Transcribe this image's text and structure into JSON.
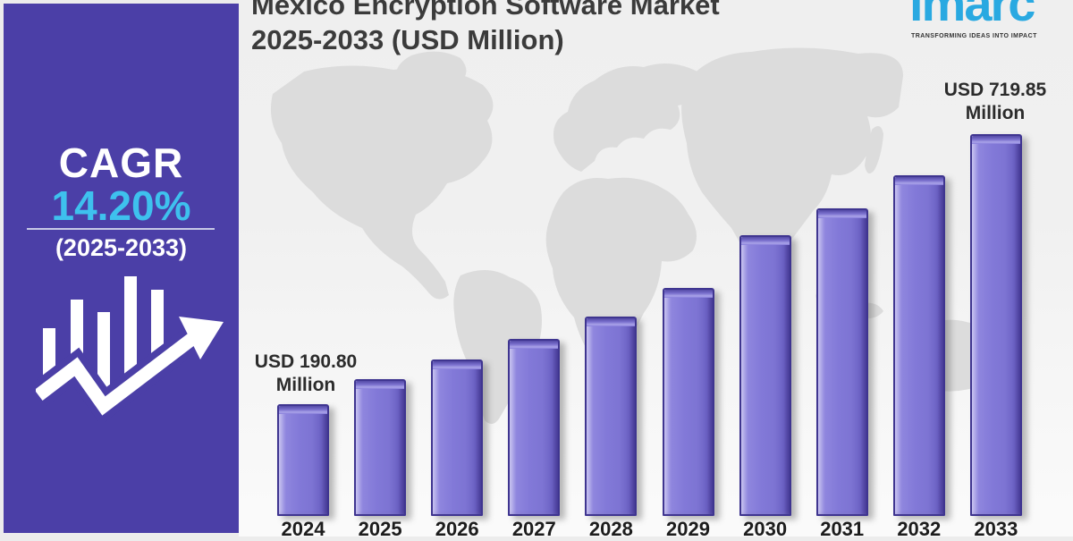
{
  "sidebar": {
    "cagr_label": "CAGR",
    "cagr_value": "14.20%",
    "cagr_period": "(2025-2033)",
    "icon": "bar-chart-growth-arrow",
    "colors": {
      "background": "#4B3FA7",
      "value_text": "#3EC1EE",
      "text": "#FFFFFF"
    }
  },
  "header": {
    "title_line1": "Mexico Encryption Software Market",
    "title_line2": "2025-2033 (USD Million)"
  },
  "logo": {
    "brand": "imarc",
    "tagline": "TRANSFORMING IDEAS INTO IMPACT",
    "brand_color": "#29A9E1"
  },
  "chart_data": {
    "type": "bar",
    "title": "Mexico Encryption Software Market 2025-2033 (USD Million)",
    "unit": "USD Million",
    "categories": [
      "2024",
      "2025",
      "2026",
      "2027",
      "2028",
      "2029",
      "2030",
      "2031",
      "2032",
      "2033"
    ],
    "values": [
      190.8,
      240,
      278,
      319,
      362,
      419,
      522,
      574,
      639,
      719.85
    ],
    "data_labels": {
      "first": {
        "category": "2024",
        "line1": "USD 190.80",
        "line2": "Million"
      },
      "last": {
        "category": "2033",
        "line1": "USD 719.85",
        "line2": "Million"
      }
    },
    "ylim": [
      0,
      760
    ],
    "grid": false,
    "legend": false,
    "background": "world-map-silhouette",
    "colors": {
      "bar_fill": "#8279D8",
      "bar_border": "#3F3590",
      "map_fill": "#DCDCDC"
    }
  }
}
